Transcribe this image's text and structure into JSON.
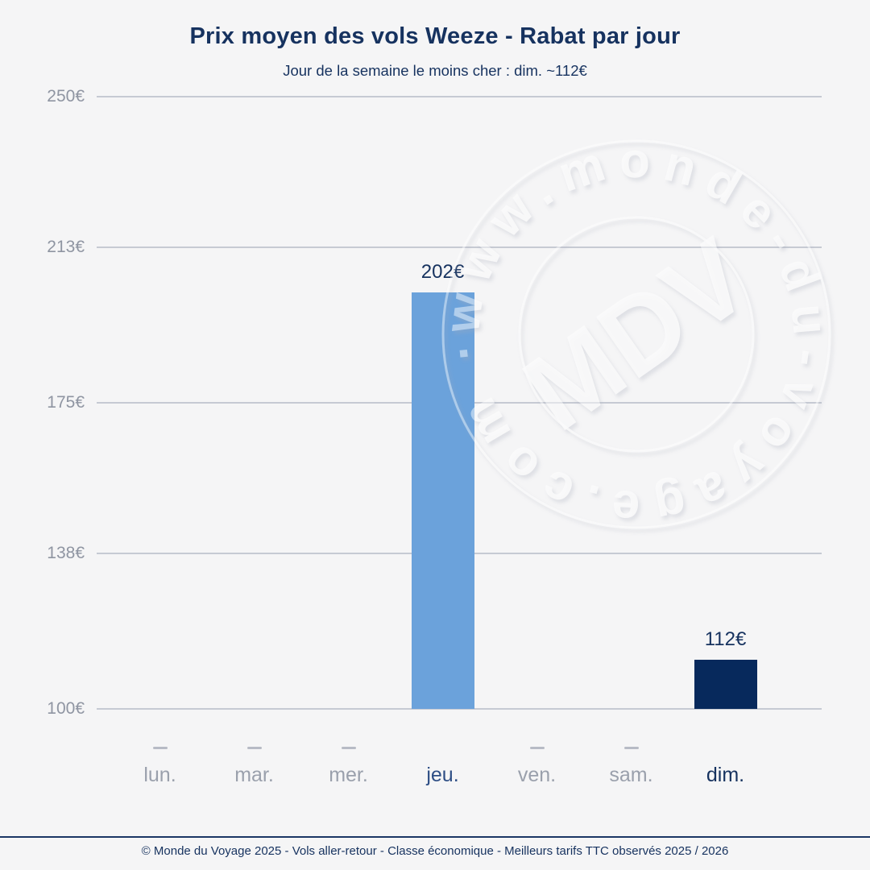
{
  "page": {
    "background_color": "#f5f5f6"
  },
  "header": {
    "title": "Prix moyen des vols Weeze - Rabat par jour",
    "subtitle": "Jour de la semaine le moins cher : dim. ~112€"
  },
  "chart_data": {
    "type": "bar",
    "title": "Prix moyen des vols Weeze - Rabat par jour",
    "categories": [
      "lun.",
      "mar.",
      "mer.",
      "jeu.",
      "ven.",
      "sam.",
      "dim."
    ],
    "values": [
      null,
      null,
      null,
      202,
      null,
      null,
      112
    ],
    "bar_value_labels": [
      "",
      "",
      "",
      "202€",
      "",
      "",
      "112€"
    ],
    "no_data_marker": "–",
    "currency_suffix": "€",
    "ylim": [
      100,
      250
    ],
    "yticks": [
      250,
      213,
      175,
      138,
      100
    ],
    "ytick_labels": [
      "250€",
      "213€",
      "175€",
      "138€",
      "100€"
    ],
    "grid": true,
    "legend": false,
    "highlight_index": 6,
    "colors": {
      "bar_default": "#6ba2db",
      "bar_highlight": "#07295c",
      "value_label": "#16325f",
      "day_label_no_data": "#9aa0ac",
      "day_label_with_data": "#2e4e85",
      "day_label_highlight": "#16325f",
      "tick_label": "#8f95a2",
      "gridline": "#c6cad3",
      "no_data_dash": "#b7bbc5"
    }
  },
  "watermark": {
    "circle_text": "www.monde-du-voyage.com ·",
    "center_text": "MDV"
  },
  "footer": {
    "text": "© Monde du Voyage 2025 - Vols aller-retour - Classe économique - Meilleurs tarifs TTC observés 2025 / 2026"
  }
}
